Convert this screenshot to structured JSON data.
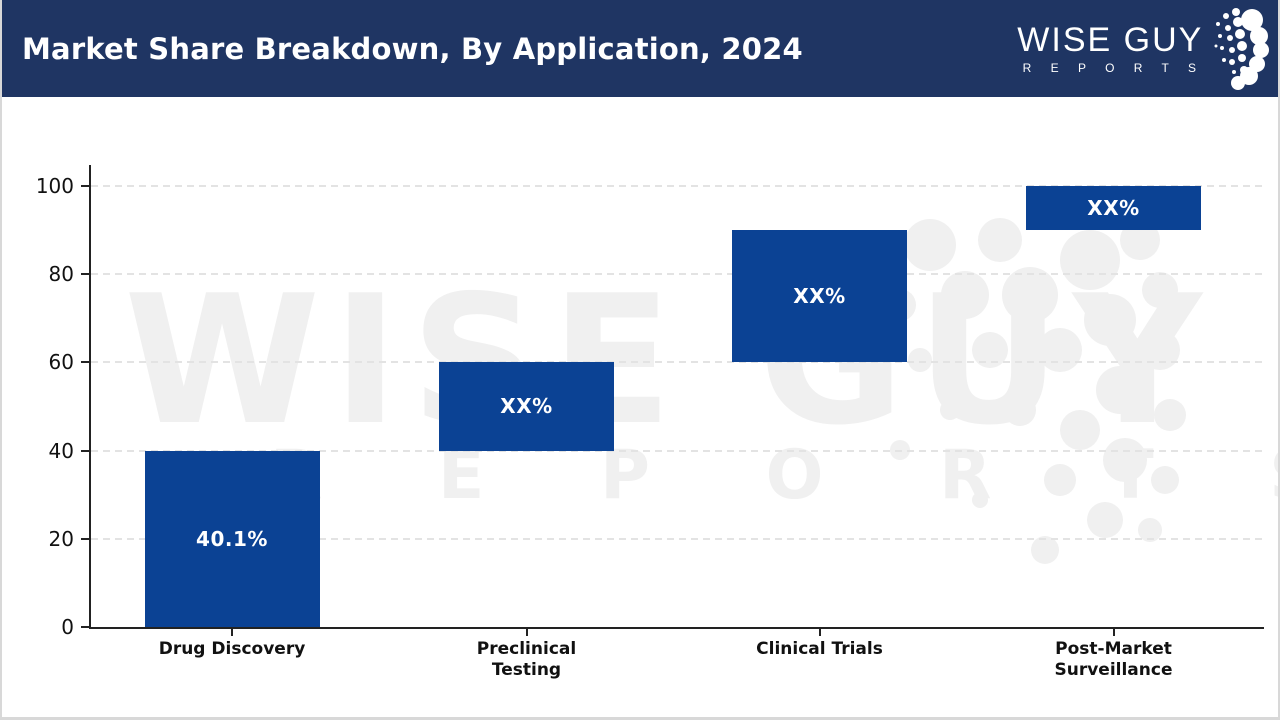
{
  "header": {
    "title": "Market Share Breakdown, By Application, 2024",
    "logo": {
      "name_line": "WISE GUY",
      "sub_line": "R E P O R T S"
    }
  },
  "watermark": {
    "name_line": "WISE GUY",
    "sub_line": "R E P O R T S"
  },
  "colors": {
    "header_bg": "#1f3563",
    "bar": "#0b4294",
    "bar_label": "#ffffff",
    "grid": "#e3e3e3",
    "axis": "#222222",
    "watermark": "#f0f0f0",
    "frame_border": "#d8d8d8"
  },
  "chart_data": {
    "type": "bar",
    "subtype": "waterfall",
    "title": "Market Share Breakdown, By Application, 2024",
    "categories": [
      "Drug Discovery",
      "Preclinical\nTesting",
      "Clinical Trials",
      "Post-Market\nSurveillance"
    ],
    "bars": [
      {
        "category": "Drug Discovery",
        "start": 0,
        "end": 40,
        "label": "40.1%"
      },
      {
        "category": "Preclinical Testing",
        "start": 40,
        "end": 60,
        "label": "XX%"
      },
      {
        "category": "Clinical Trials",
        "start": 60,
        "end": 90,
        "label": "XX%"
      },
      {
        "category": "Post-Market Surveillance",
        "start": 90,
        "end": 100,
        "label": "XX%"
      }
    ],
    "yticks": [
      0,
      20,
      40,
      60,
      80,
      100
    ],
    "ylim": [
      0,
      105
    ],
    "xlabel": "",
    "ylabel": "",
    "grid": "horizontal-dashed",
    "legend": "none",
    "bar_color": "#0b4294",
    "value_label_color": "#ffffff"
  }
}
